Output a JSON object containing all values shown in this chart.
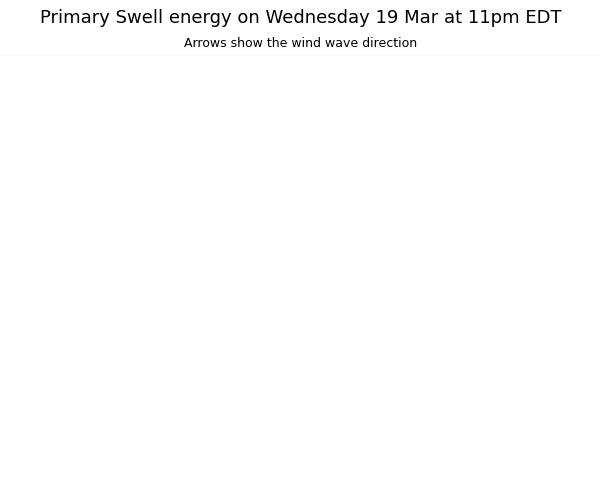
{
  "title": "Primary Swell energy on Wednesday 19 Mar at 11pm EDT",
  "subtitle": "Arrows show the wind wave direction",
  "title_fontsize": 13,
  "subtitle_fontsize": 9,
  "fig_width": 6.01,
  "fig_height": 4.87,
  "dpi": 100,
  "title_bg": "#ffffff",
  "map_bg": "#000000",
  "land_color_light": "#b0b0b0",
  "land_color_dark": "#888888",
  "border_color": "#404040",
  "arrow_color": "#00e8cc",
  "ocean_color": "#000000",
  "pacific_swell": {
    "yellow": "#ffff00",
    "cyan_blue": "#00aaff",
    "deep_blue": "#0000cc"
  },
  "atlantic_swell": {
    "deep_blue": "#0000aa",
    "mid_blue": "#0044cc"
  },
  "extent": [
    -145,
    -45,
    38,
    85
  ]
}
